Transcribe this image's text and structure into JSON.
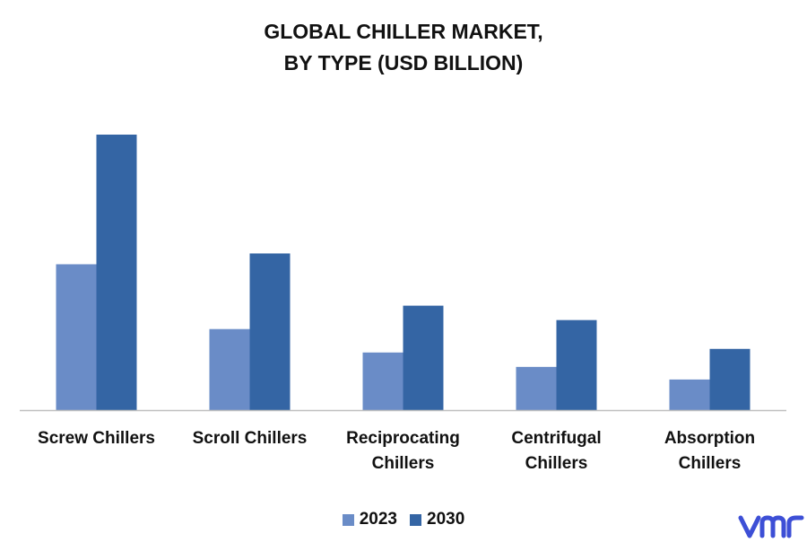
{
  "title_line1": "GLOBAL CHILLER MARKET,",
  "title_line2": "BY TYPE (USD BILLION)",
  "chart_data": {
    "type": "bar",
    "title": "GLOBAL CHILLER MARKET, BY TYPE (USD BILLION)",
    "categories": [
      "Screw Chillers",
      "Scroll Chillers",
      "Reciprocating Chillers",
      "Centrifugal Chillers",
      "Absorption Chillers"
    ],
    "category_lines": [
      [
        "Screw Chillers"
      ],
      [
        "Scroll Chillers"
      ],
      [
        "Reciprocating",
        "Chillers"
      ],
      [
        "Centrifugal",
        "Chillers"
      ],
      [
        "Absorption",
        "Chillers"
      ]
    ],
    "series": [
      {
        "name": "2023",
        "color": "#6a8cc7",
        "values": [
          8.1,
          4.5,
          3.2,
          2.4,
          1.7
        ]
      },
      {
        "name": "2030",
        "color": "#3465a4",
        "values": [
          15.3,
          8.7,
          5.8,
          5.0,
          3.4
        ]
      }
    ],
    "ylim": [
      0,
      16
    ],
    "yaxis_visible": false,
    "grid": false,
    "legend_position": "bottom"
  },
  "logo": {
    "name": "vmr-logo",
    "color": "#3d4fd6"
  }
}
